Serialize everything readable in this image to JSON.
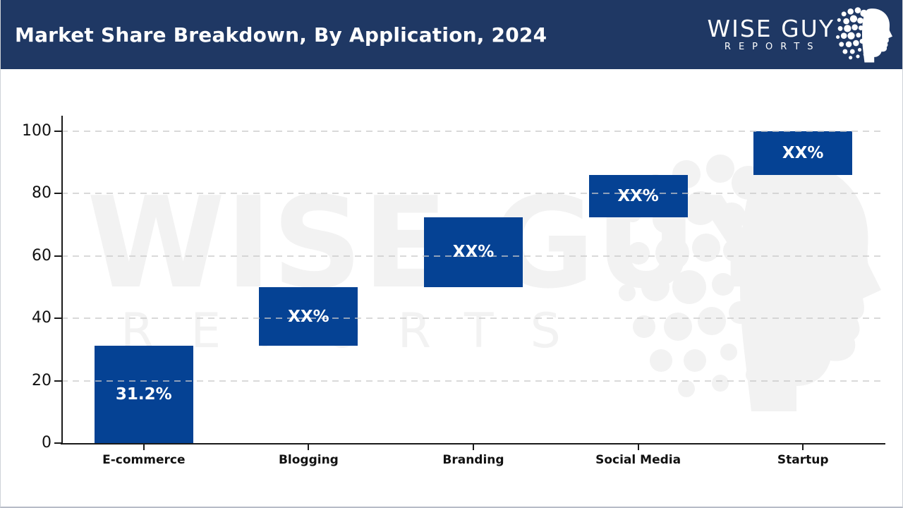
{
  "header": {
    "title": "Market Share Breakdown, By Application, 2024",
    "logo": {
      "line1": "WISE GUY",
      "line2": "REPORTS"
    }
  },
  "watermark": {
    "line1": "WISE GUY",
    "line2": "REPORTS"
  },
  "colors": {
    "header_bg": "#1F3864",
    "bar": "#054294",
    "bar_label": "#ffffff",
    "axis": "#1a1a1a",
    "grid": "#c9c9c9",
    "tick_label": "#111111",
    "watermark": "#f2f2f2",
    "page_bg": "#ffffff"
  },
  "chart_data": {
    "type": "bar",
    "subtype": "waterfall",
    "title": "Market Share Breakdown, By Application, 2024",
    "categories": [
      "E-commerce",
      "Blogging",
      "Branding",
      "Social Media",
      "Startup"
    ],
    "bars": [
      {
        "category": "E-commerce",
        "start": 0,
        "end": 31.2,
        "label": "31.2%"
      },
      {
        "category": "Blogging",
        "start": 31.2,
        "end": 50,
        "label": "XX%"
      },
      {
        "category": "Branding",
        "start": 50,
        "end": 72.5,
        "label": "XX%"
      },
      {
        "category": "Social Media",
        "start": 72.5,
        "end": 86,
        "label": "XX%"
      },
      {
        "category": "Startup",
        "start": 86,
        "end": 100,
        "label": "XX%"
      }
    ],
    "yticks": [
      0,
      20,
      40,
      60,
      80,
      100
    ],
    "ylim": [
      0,
      105
    ],
    "xlabel": "",
    "ylabel": "",
    "grid": "horizontal-dashed",
    "legend": "none"
  }
}
